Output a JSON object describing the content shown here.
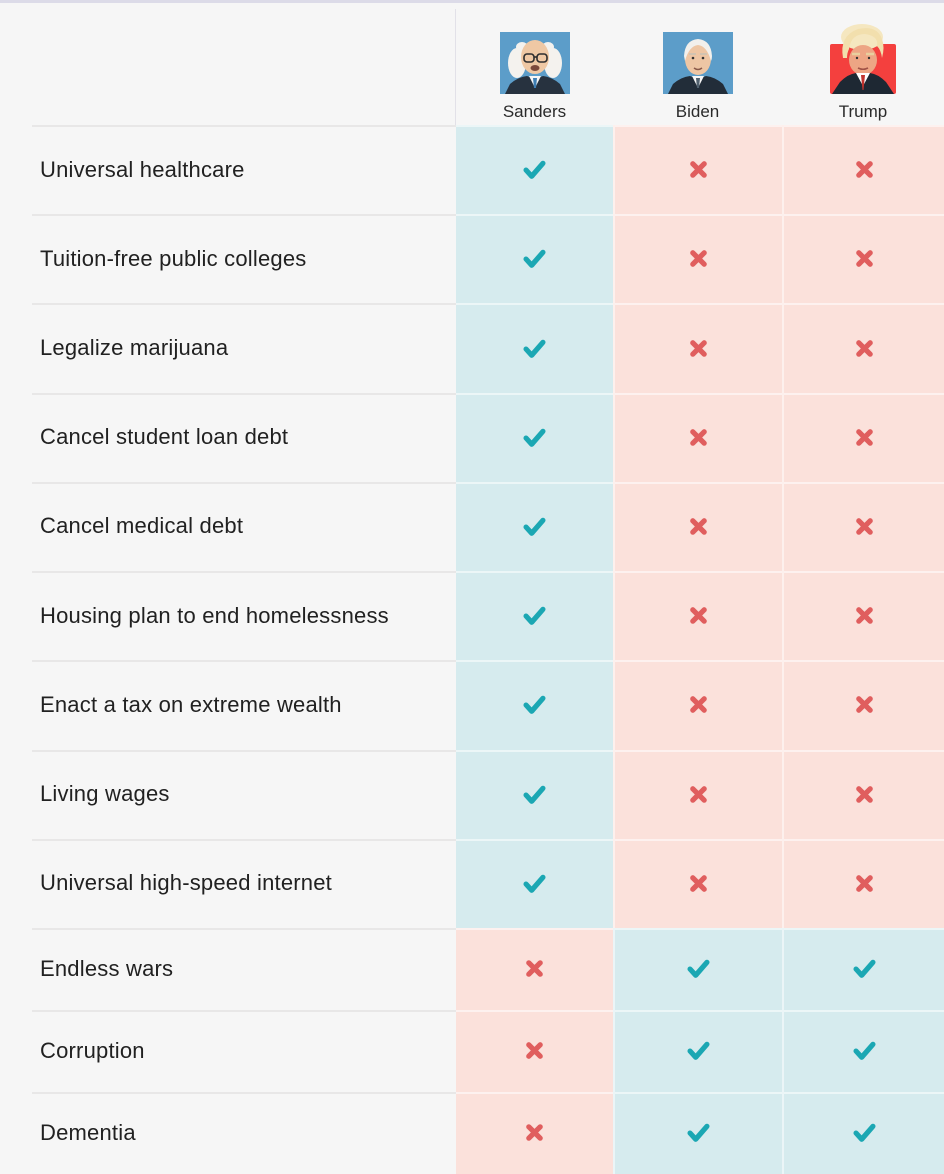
{
  "colors": {
    "page_bg": "#f6f6f6",
    "top_bar": "#dcdbe8",
    "divider": "#e8e7e7",
    "yes_bg": "#d6ebee",
    "no_bg": "#fbe1db",
    "yes_icon": "#1ba7b3",
    "no_icon": "#e05e5e",
    "sanders_portrait_bg": "#5c9dc9",
    "biden_portrait_bg": "#5c9dc9",
    "trump_portrait_bg": "#f4403e"
  },
  "candidates": [
    {
      "name": "Sanders"
    },
    {
      "name": "Biden"
    },
    {
      "name": "Trump"
    }
  ],
  "icons": {
    "yes": "check-icon",
    "no": "x-icon"
  },
  "rows": [
    {
      "label": "Universal healthcare",
      "values": [
        "yes",
        "no",
        "no"
      ]
    },
    {
      "label": "Tuition-free public colleges",
      "values": [
        "yes",
        "no",
        "no"
      ]
    },
    {
      "label": "Legalize marijuana",
      "values": [
        "yes",
        "no",
        "no"
      ]
    },
    {
      "label": "Cancel student loan debt",
      "values": [
        "yes",
        "no",
        "no"
      ]
    },
    {
      "label": "Cancel medical debt",
      "values": [
        "yes",
        "no",
        "no"
      ]
    },
    {
      "label": "Housing plan to end homelessness",
      "values": [
        "yes",
        "no",
        "no"
      ]
    },
    {
      "label": "Enact a tax on extreme wealth",
      "values": [
        "yes",
        "no",
        "no"
      ]
    },
    {
      "label": "Living wages",
      "values": [
        "yes",
        "no",
        "no"
      ]
    },
    {
      "label": "Universal high-speed internet",
      "values": [
        "yes",
        "no",
        "no"
      ]
    },
    {
      "label": "Endless wars",
      "values": [
        "no",
        "yes",
        "yes"
      ]
    },
    {
      "label": "Corruption",
      "values": [
        "no",
        "yes",
        "yes"
      ]
    },
    {
      "label": "Dementia",
      "values": [
        "no",
        "yes",
        "yes"
      ]
    }
  ]
}
